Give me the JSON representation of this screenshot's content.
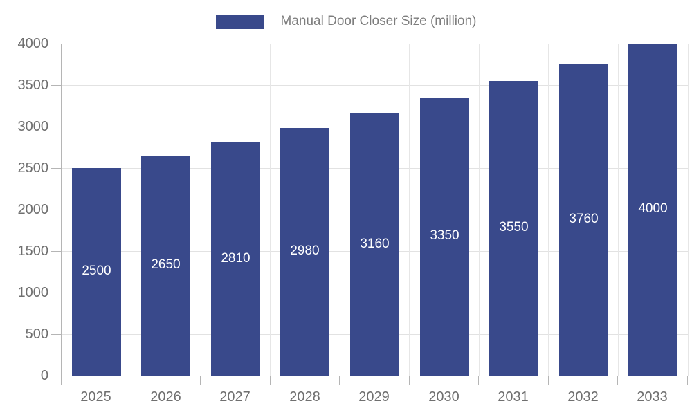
{
  "legend": {
    "label": "Manual Door Closer Size (million)"
  },
  "chart_data": {
    "type": "bar",
    "title": "Manual Door Closer Size (million)",
    "categories": [
      "2025",
      "2026",
      "2027",
      "2028",
      "2029",
      "2030",
      "2031",
      "2032",
      "2033"
    ],
    "series": [
      {
        "name": "Manual Door Closer Size (million)",
        "values": [
          2500,
          2650,
          2810,
          2980,
          3160,
          3350,
          3550,
          3760,
          4000
        ]
      }
    ],
    "xlabel": "",
    "ylabel": "",
    "ylim": [
      0,
      4000
    ],
    "y_ticks": [
      0,
      500,
      1000,
      1500,
      2000,
      2500,
      3000,
      3500,
      4000
    ],
    "grid": true,
    "legend_position": "top-center",
    "value_labels": "centered-inside-bars",
    "colors": {
      "bar": "#39498B",
      "grid_horizontal": "#e2e2e2",
      "grid_vertical": "#e6e6e6",
      "axis_line": "#b5b5b5",
      "axis_text": "#6f6f6f",
      "legend_text": "#7d7d7d",
      "value_text": "#ffffff",
      "background": "#ffffff"
    }
  }
}
